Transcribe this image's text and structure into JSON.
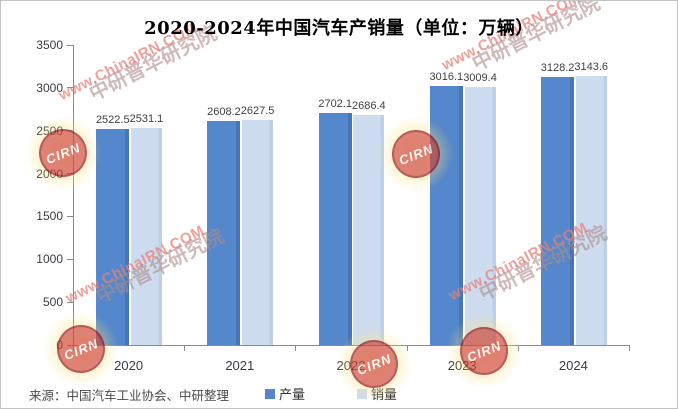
{
  "title": "2020-2024年中国汽车产销量（单位：万辆）",
  "source": "来源：中国汽车工业协会、中研整理",
  "watermark": {
    "url_text": "www.ChinaIRN.COM",
    "cn_text": "中研普华研究院",
    "stamp_text": "CIRN"
  },
  "chart_data": {
    "type": "bar",
    "title": "2020-2024年中国汽车产销量（单位：万辆）",
    "categories": [
      "2020",
      "2021",
      "2022",
      "2023",
      "2024"
    ],
    "series": [
      {
        "name": "产量",
        "color": "#5487cb",
        "edge_color": "#4876b5",
        "values": [
          2522.5,
          2608.2,
          2702.1,
          3016.1,
          3128.2
        ]
      },
      {
        "name": "销量",
        "color": "#cedcf0",
        "edge_color": "#bed0e8",
        "values": [
          2531.1,
          2627.5,
          2686.4,
          3009.4,
          3143.6
        ]
      }
    ],
    "xlabel": "",
    "ylabel": "",
    "ylim": [
      0,
      3500
    ],
    "yticks": [
      0,
      500,
      1000,
      1500,
      2000,
      2500,
      3000,
      3500
    ],
    "grid": false,
    "legend_position": "bottom",
    "value_labels": true,
    "axis_color": "#8a8a8a"
  }
}
